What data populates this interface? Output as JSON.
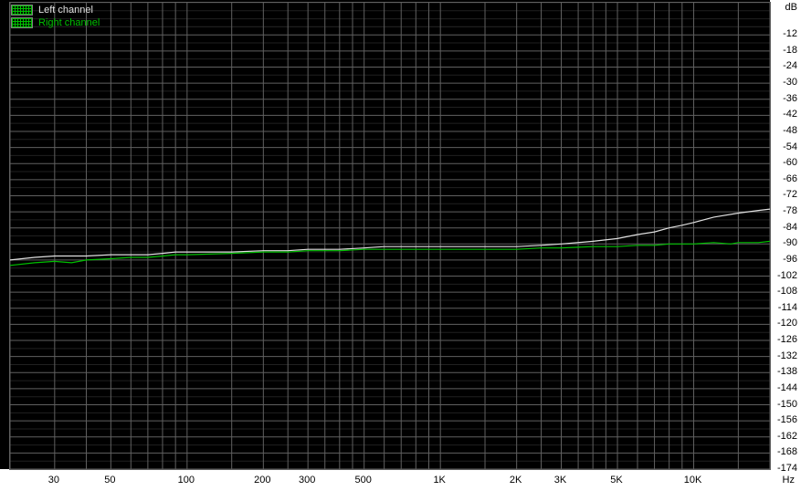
{
  "noise_chart": {
    "type": "line",
    "background_color": "#000000",
    "outer_background": "#ffffff",
    "grid_color_major": "#606060",
    "grid_color_minor": "#202020",
    "y_axis": {
      "unit": "dB",
      "min": -174,
      "max": 0,
      "tick_step": 6,
      "ticks": [
        -12,
        -18,
        -24,
        -30,
        -36,
        -42,
        -48,
        -54,
        -60,
        -66,
        -72,
        -78,
        -84,
        -90,
        -96,
        -102,
        -108,
        -114,
        -120,
        -126,
        -132,
        -138,
        -144,
        -150,
        -156,
        -162,
        -168,
        -174
      ],
      "tick_fontsize": 11,
      "tick_color": "#000000"
    },
    "x_axis": {
      "unit": "Hz",
      "scale": "log",
      "min": 20,
      "max": 20000,
      "major_ticks": [
        30,
        50,
        100,
        200,
        300,
        500,
        1000,
        2000,
        3000,
        5000,
        10000
      ],
      "major_tick_labels": [
        "30",
        "50",
        "100",
        "200",
        "300",
        "500",
        "1K",
        "2K",
        "3K",
        "5K",
        "10K"
      ],
      "minor_ticks": [
        20,
        40,
        60,
        70,
        80,
        90,
        150,
        250,
        350,
        400,
        450,
        600,
        700,
        800,
        900,
        1500,
        2500,
        3500,
        4000,
        4500,
        6000,
        7000,
        8000,
        9000,
        15000,
        20000
      ],
      "tick_fontsize": 11,
      "tick_color": "#000000"
    },
    "series": [
      {
        "name": "Left channel",
        "color": "#e0e0e0",
        "line_width": 1.2,
        "points": [
          [
            20,
            -96
          ],
          [
            25,
            -95
          ],
          [
            30,
            -94.5
          ],
          [
            40,
            -94.5
          ],
          [
            50,
            -94
          ],
          [
            60,
            -94
          ],
          [
            70,
            -94
          ],
          [
            80,
            -93.5
          ],
          [
            90,
            -93
          ],
          [
            100,
            -93
          ],
          [
            150,
            -93
          ],
          [
            200,
            -92.5
          ],
          [
            250,
            -92.5
          ],
          [
            300,
            -92
          ],
          [
            350,
            -92
          ],
          [
            400,
            -92
          ],
          [
            500,
            -91.5
          ],
          [
            600,
            -91
          ],
          [
            700,
            -91
          ],
          [
            800,
            -91
          ],
          [
            900,
            -91
          ],
          [
            1000,
            -91
          ],
          [
            1500,
            -91
          ],
          [
            2000,
            -91
          ],
          [
            2500,
            -90.5
          ],
          [
            3000,
            -90
          ],
          [
            4000,
            -89
          ],
          [
            5000,
            -88
          ],
          [
            6000,
            -86.5
          ],
          [
            7000,
            -85.5
          ],
          [
            8000,
            -84
          ],
          [
            9000,
            -83
          ],
          [
            10000,
            -82
          ],
          [
            12000,
            -80
          ],
          [
            15000,
            -78.5
          ],
          [
            18000,
            -77.5
          ],
          [
            20000,
            -77
          ]
        ]
      },
      {
        "name": "Right channel",
        "color": "#00c000",
        "line_width": 1.2,
        "points": [
          [
            20,
            -98
          ],
          [
            25,
            -97
          ],
          [
            30,
            -96.5
          ],
          [
            35,
            -97
          ],
          [
            40,
            -96
          ],
          [
            50,
            -95.5
          ],
          [
            60,
            -95
          ],
          [
            70,
            -95
          ],
          [
            80,
            -94.5
          ],
          [
            90,
            -94
          ],
          [
            100,
            -94
          ],
          [
            150,
            -93.5
          ],
          [
            200,
            -93
          ],
          [
            250,
            -93
          ],
          [
            300,
            -92.5
          ],
          [
            350,
            -92.5
          ],
          [
            400,
            -92.5
          ],
          [
            500,
            -92
          ],
          [
            600,
            -92
          ],
          [
            700,
            -92
          ],
          [
            800,
            -92
          ],
          [
            900,
            -92
          ],
          [
            1000,
            -92
          ],
          [
            1500,
            -92
          ],
          [
            2000,
            -92
          ],
          [
            2500,
            -91.5
          ],
          [
            3000,
            -91.5
          ],
          [
            4000,
            -91
          ],
          [
            5000,
            -91
          ],
          [
            6000,
            -90.5
          ],
          [
            7000,
            -90.5
          ],
          [
            8000,
            -90
          ],
          [
            9000,
            -90
          ],
          [
            10000,
            -90
          ],
          [
            12000,
            -89.5
          ],
          [
            14000,
            -90
          ],
          [
            15000,
            -89.5
          ],
          [
            18000,
            -89.5
          ],
          [
            20000,
            -89
          ]
        ]
      }
    ],
    "legend": {
      "position": "top-left",
      "items": [
        {
          "label": "Left channel",
          "color": "#e0e0e0"
        },
        {
          "label": "Right channel",
          "color": "#00c000"
        }
      ]
    }
  }
}
